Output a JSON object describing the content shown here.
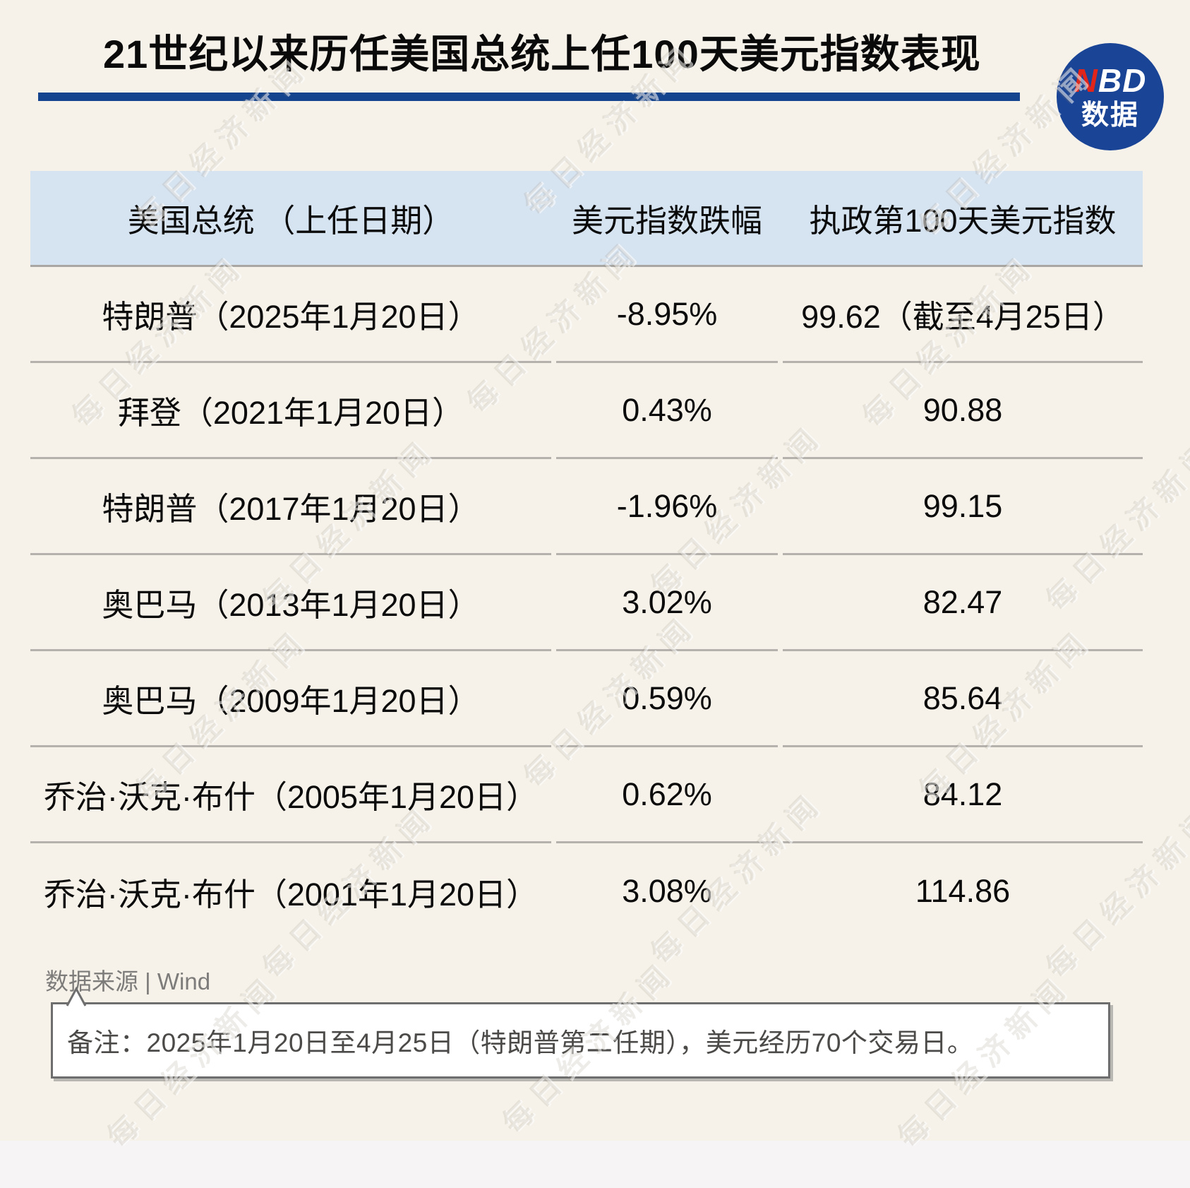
{
  "chart_data": {
    "type": "table",
    "title": "21世纪以来历任美国总统上任100天美元指数表现",
    "columns": [
      "美国总统 （上任日期）",
      "美元指数跌幅",
      "执政第100天美元指数"
    ],
    "rows": [
      [
        "特朗普（2025年1月20日）",
        "-8.95%",
        "99.62（截至4月25日）"
      ],
      [
        "拜登（2021年1月20日）",
        "0.43%",
        "90.88"
      ],
      [
        "特朗普（2017年1月20日）",
        "-1.96%",
        "99.15"
      ],
      [
        "奥巴马（2013年1月20日）",
        "3.02%",
        "82.47"
      ],
      [
        "奥巴马（2009年1月20日）",
        "0.59%",
        "85.64"
      ],
      [
        "乔治·沃克·布什（2005年1月20日）",
        "0.62%",
        "84.12"
      ],
      [
        "乔治·沃克·布什（2001年1月20日）",
        "3.08%",
        "114.86"
      ]
    ],
    "layout": {
      "legend": "none",
      "grid": "horizontal-row-dividers",
      "header_position": "top"
    }
  },
  "logo": {
    "n": "N",
    "bd": "BD",
    "sub": "数据"
  },
  "footer": {
    "source": "数据来源 | Wind",
    "note": "备注：2025年1月20日至4月25日（特朗普第二任期），美元经历70个交易日。"
  },
  "watermark": {
    "text": "每日经济新闻"
  },
  "colors": {
    "background": "#f6f2ea",
    "accent_blue": "#14448e",
    "logo_blue": "#1a4496",
    "logo_red": "#e1251b",
    "header_bg": "#d6e3f0",
    "divider_gray": "#b5b2ae",
    "note_border": "#6e6e6e",
    "source_text": "#7d7c7a"
  }
}
